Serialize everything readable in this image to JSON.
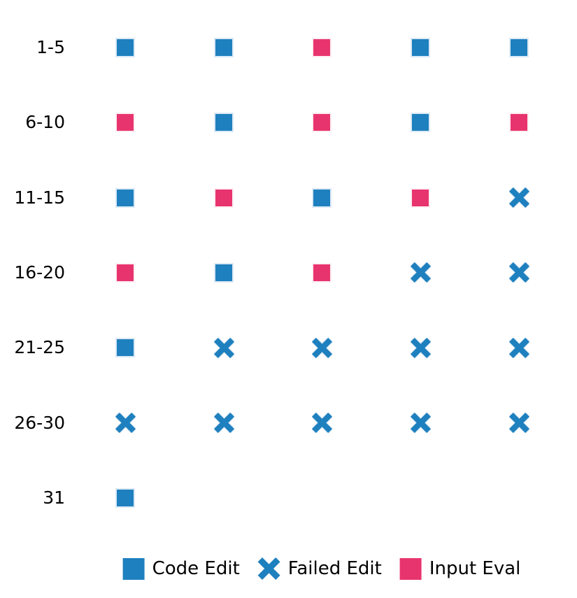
{
  "chart_data": {
    "type": "scatter",
    "title": "",
    "xlabel": "",
    "ylabel": "",
    "row_axis_labels": [
      "1-5",
      "6-10",
      "11-15",
      "16-20",
      "21-25",
      "26-30",
      "31"
    ],
    "rows": [
      {
        "label": "1-5",
        "cells": [
          "code_edit",
          "code_edit",
          "input_eval",
          "code_edit",
          "code_edit"
        ]
      },
      {
        "label": "6-10",
        "cells": [
          "input_eval",
          "code_edit",
          "input_eval",
          "code_edit",
          "input_eval"
        ]
      },
      {
        "label": "11-15",
        "cells": [
          "code_edit",
          "input_eval",
          "code_edit",
          "input_eval",
          "failed_edit"
        ]
      },
      {
        "label": "16-20",
        "cells": [
          "input_eval",
          "code_edit",
          "input_eval",
          "failed_edit",
          "failed_edit"
        ]
      },
      {
        "label": "21-25",
        "cells": [
          "code_edit",
          "failed_edit",
          "failed_edit",
          "failed_edit",
          "failed_edit"
        ]
      },
      {
        "label": "26-30",
        "cells": [
          "failed_edit",
          "failed_edit",
          "failed_edit",
          "failed_edit",
          "failed_edit"
        ]
      },
      {
        "label": "31",
        "cells": [
          "code_edit"
        ]
      }
    ],
    "marker_defs": {
      "code_edit": {
        "shape": "square",
        "color": "#1e80be",
        "halo": "#dbe9f5"
      },
      "failed_edit": {
        "shape": "x",
        "color": "#1e80be",
        "halo": "#dbe9f5"
      },
      "input_eval": {
        "shape": "square",
        "color": "#e8346e",
        "halo": "#fceef3"
      }
    },
    "legend": [
      {
        "key": "code_edit",
        "label": "Code Edit"
      },
      {
        "key": "failed_edit",
        "label": "Failed Edit"
      },
      {
        "key": "input_eval",
        "label": "Input Eval"
      }
    ],
    "colors": {
      "blue": "#1e80be",
      "pink": "#e8346e",
      "text": "#000000",
      "background": "#ffffff"
    },
    "layout_hints": {
      "columns_per_row": 5,
      "legend_position": "bottom-center",
      "grid_lines": false,
      "axes_visible": false
    }
  }
}
